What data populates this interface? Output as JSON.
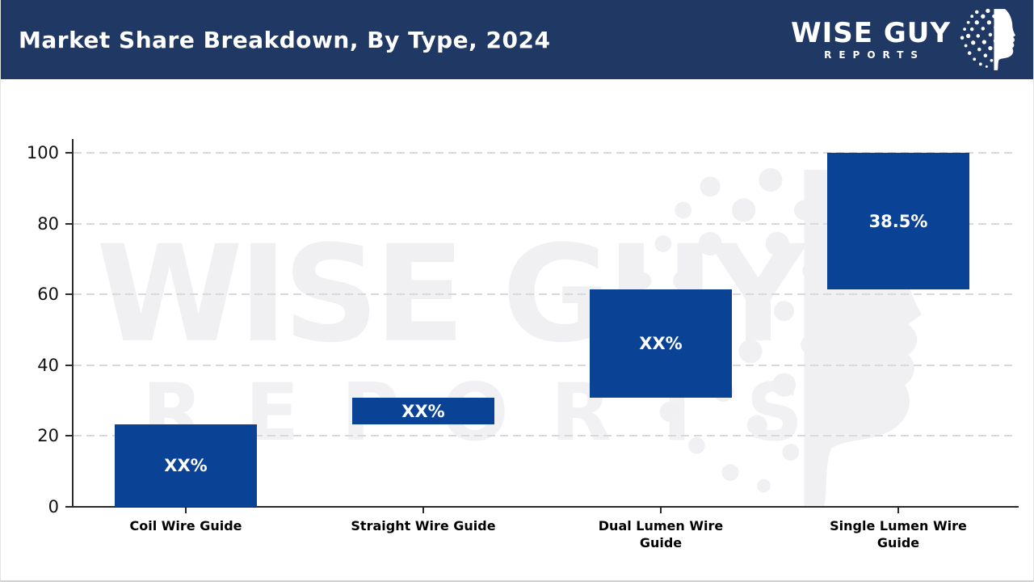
{
  "header": {
    "title": "Market Share Breakdown, By Type, 2024",
    "logo": {
      "wordmark": "WISE GUY",
      "subtext": "REPORTS"
    }
  },
  "watermark": {
    "wordmark": "WISE GUY",
    "subtext": "REPORTS"
  },
  "colors": {
    "header_bg": "#1f3864",
    "bar": "#0a4296",
    "bar_label": "#ffffff",
    "grid": "#d9d9d9",
    "axis": "#2a2a2a",
    "watermark": "#f0f0f2"
  },
  "chart_data": {
    "type": "bar",
    "subtype": "floating-waterfall-columns",
    "title": "Market Share Breakdown, By Type, 2024",
    "categories": [
      "Coil Wire Guide",
      "Straight Wire Guide",
      "Dual Lumen Wire Guide",
      "Single Lumen Wire Guide"
    ],
    "bars": [
      {
        "category": "Coil Wire Guide",
        "base": 0,
        "top": 23.3,
        "label": "XX%"
      },
      {
        "category": "Straight Wire Guide",
        "base": 23.3,
        "top": 30.8,
        "label": "XX%"
      },
      {
        "category": "Dual Lumen Wire Guide",
        "base": 30.8,
        "top": 61.5,
        "label": "XX%"
      },
      {
        "category": "Single Lumen Wire Guide",
        "base": 61.5,
        "top": 100,
        "label": "38.5%"
      }
    ],
    "ylim": [
      0,
      100
    ],
    "yticks": [
      0,
      20,
      40,
      60,
      80,
      100
    ],
    "xlabel": "",
    "ylabel": "",
    "grid": "horizontal-dashed",
    "legend": "none"
  }
}
